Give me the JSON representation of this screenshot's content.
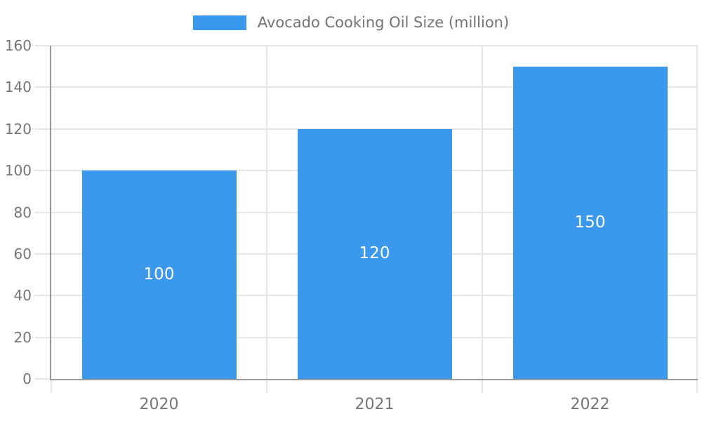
{
  "chart_data": {
    "type": "bar",
    "title": "",
    "legend": {
      "label": "Avocado Cooking Oil Size (million)",
      "position": "top"
    },
    "categories": [
      "2020",
      "2021",
      "2022"
    ],
    "series": [
      {
        "name": "Avocado Cooking Oil Size (million)",
        "values": [
          100,
          120,
          150
        ]
      }
    ],
    "data_labels": [
      "100",
      "120",
      "150"
    ],
    "xlabel": "",
    "ylabel": "",
    "ylim": [
      0,
      160
    ],
    "ytick_step": 20,
    "yticks": [
      "0",
      "20",
      "40",
      "60",
      "80",
      "100",
      "120",
      "140",
      "160"
    ],
    "grid": true,
    "legend_position": "top-center",
    "colors": {
      "bar": "#3B99ED",
      "data_label": "#FFFFFF",
      "axis": "#999999",
      "grid": "#E6E6E6",
      "tick_label": "#757575",
      "legend_text": "#737373",
      "background": "#FFFFFF"
    }
  }
}
